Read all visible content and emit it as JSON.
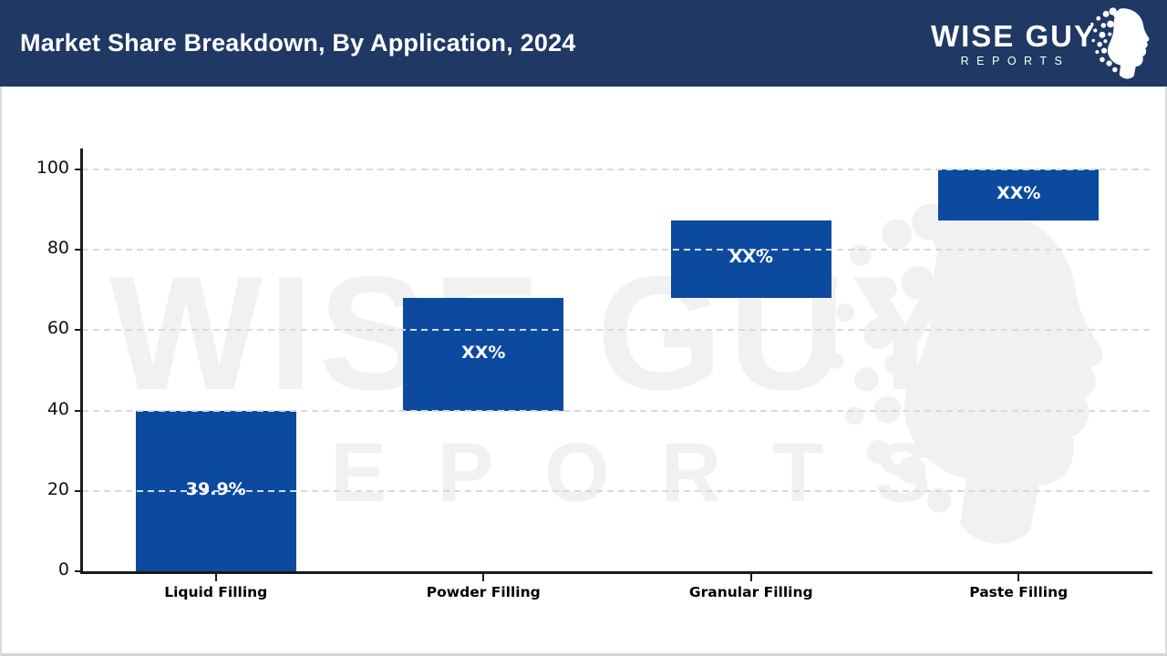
{
  "header": {
    "title": "Market Share Breakdown, By Application, 2024",
    "logo": {
      "wordmark": "WISE GUY",
      "subtext": "REPORTS"
    }
  },
  "watermark": {
    "line1": "WISE GUY",
    "line2": "REPORTS"
  },
  "colors": {
    "header_bg": "#1f3864",
    "bar": "#0b4a9e",
    "grid": "#d9d9d9",
    "axis": "#1a1a1a",
    "watermark": "#f1f1f4",
    "bar_label": "#ffffff",
    "text": "#111111"
  },
  "chart_data": {
    "type": "bar",
    "variant": "waterfall",
    "title": "Market Share Breakdown, By Application, 2024",
    "unit": "percent",
    "categories": [
      "Liquid Filling",
      "Powder Filling",
      "Granular Filling",
      "Paste Filling"
    ],
    "bars": [
      {
        "category": "Liquid Filling",
        "start": 0,
        "end": 39.9,
        "label": "39.9%"
      },
      {
        "category": "Powder Filling",
        "start": 40,
        "end": 68.1,
        "label": "XX%"
      },
      {
        "category": "Granular Filling",
        "start": 68.1,
        "end": 87.3,
        "label": "XX%"
      },
      {
        "category": "Paste Filling",
        "start": 87.3,
        "end": 100,
        "label": "XX%"
      }
    ],
    "yticks": [
      0,
      20,
      40,
      60,
      80,
      100
    ],
    "ylim": [
      0,
      105
    ],
    "xlabel": "",
    "ylabel": "",
    "grid": {
      "axis": "y",
      "style": "dashed",
      "above_bars": true
    },
    "legend": false
  }
}
